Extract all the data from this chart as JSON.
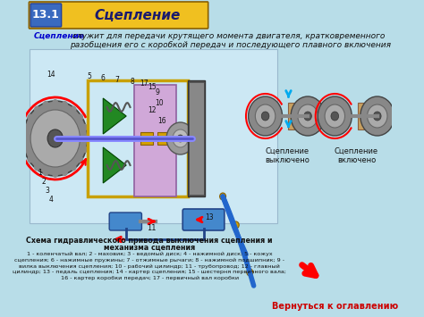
{
  "bg_color": "#b8dde8",
  "header_bg": "#f0c020",
  "header_number": "13.1",
  "header_title": "Сцепление",
  "header_number_bg": "#3a6abf",
  "subtitle_bold": "Сцепление",
  "subtitle_rest": " служит для передачи крутящего момента двигателя, кратковременного\nразобщения его с коробкой передач и последующего плавного включения",
  "scheme_title_line1": "Схема гидравлического привода выключения сцепления и",
  "scheme_title_line2": "механизма сцепления",
  "legend_text": "1 - коленчатый вал; 2 - маховик; 3 - ведомый диск; 4 - нажимной диск; 5 - кожух\nсцепления; 6 - нажимные пружины; 7 - отжимные рычаги; 8 - нажимной подшипник; 9 -\nвилка выключения сцепления; 10 - рабочий цилиндр; 11 - трубопровод; 12 - главный\nцилиндр; 13 - педаль сцепления; 14 - картер сцепления; 15 - шестерня первичного вала;\n16 - картер коробки передач; 17 - первичный вал коробки",
  "back_link": "Вернуться к оглавлению",
  "clutch_off_label": "Сцепление\nвыключено",
  "clutch_on_label": "Сцепление\nвключено"
}
